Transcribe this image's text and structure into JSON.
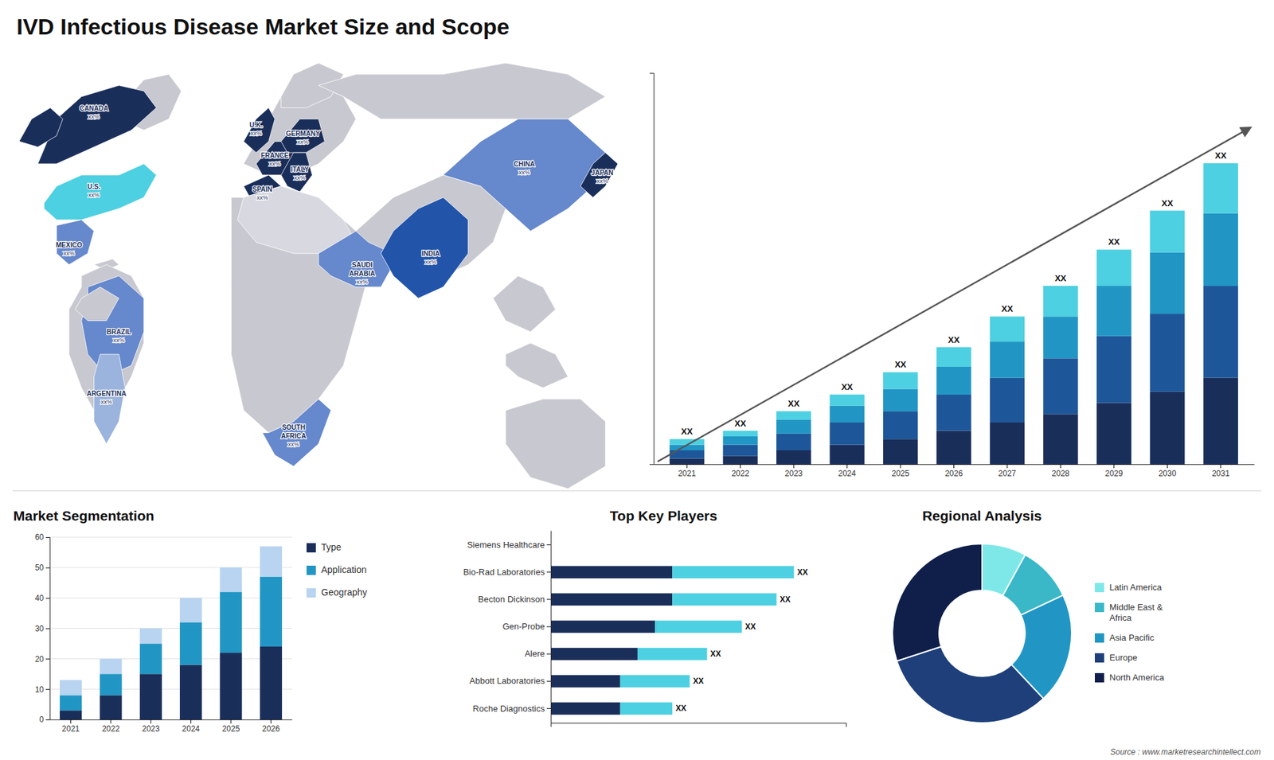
{
  "chart_data": [
    {
      "type": "bar",
      "title": "IVD Infectious Disease Market Size and Scope",
      "stacked": true,
      "categories": [
        "2021",
        "2022",
        "2023",
        "2024",
        "2025",
        "2026",
        "2027",
        "2028",
        "2029",
        "2030",
        "2031"
      ],
      "series": [
        {
          "color": "#1a2e5a",
          "values": [
            2,
            3,
            5,
            7,
            9,
            12,
            15,
            18,
            22,
            26,
            31
          ]
        },
        {
          "color": "#1e5799",
          "values": [
            3,
            4,
            6,
            8,
            10,
            13,
            16,
            20,
            24,
            28,
            33
          ]
        },
        {
          "color": "#2196c4",
          "values": [
            2,
            3,
            5,
            6,
            8,
            10,
            13,
            15,
            18,
            22,
            26
          ]
        },
        {
          "color": "#4dd0e1",
          "values": [
            2,
            2,
            3,
            4,
            6,
            7,
            9,
            11,
            13,
            15,
            18
          ]
        }
      ],
      "ylim": [
        0,
        140.4
      ],
      "tick_labels": "x",
      "grid": false,
      "annotations": [
        "XX",
        "XX",
        "XX",
        "XX",
        "XX",
        "XX",
        "XX",
        "XX",
        "XX",
        "XX",
        "XX"
      ]
    },
    {
      "type": "map",
      "categories": [
        "CANADA",
        "U.S.",
        "MEXICO",
        "BRAZIL",
        "ARGENTINA",
        "U.K.",
        "FRANCE",
        "SPAIN",
        "GERMANY",
        "ITALY",
        "SAUDI\nARABIA",
        "SOUTH\nAFRICA",
        "CHINA",
        "JAPAN",
        "INDIA"
      ],
      "colors": [
        "#1a2e5a",
        "#4dd0e1",
        "#6688cc",
        "#6688cc",
        "#9bb4dd",
        "#1a2e5a",
        "#1a2e5a",
        "#1a2e5a",
        "#1a2e5a",
        "#1a2e5a",
        "#6688cc",
        "#6688cc",
        "#6688cc",
        "#1a2e5a",
        "#2255aa"
      ],
      "annotations": [
        "xx%",
        "xx%",
        "xx%",
        "xx%",
        "xx%",
        "xx%",
        "xx%",
        "xx%",
        "xx%",
        "xx%",
        "xx%",
        "xx%",
        "xx%",
        "xx%",
        "xx%"
      ]
    },
    {
      "type": "bar",
      "title": "Market Segmentation",
      "stacked": true,
      "categories": [
        "2021",
        "2022",
        "2023",
        "2024",
        "2025",
        "2026"
      ],
      "series": [
        {
          "name": "Type",
          "color": "#1a2e5a",
          "values": [
            3,
            8,
            15,
            18,
            22,
            24
          ]
        },
        {
          "name": "Application",
          "color": "#2196c4",
          "values": [
            5,
            7,
            10,
            14,
            20,
            23
          ]
        },
        {
          "name": "Geography",
          "color": "#b8d4f0",
          "values": [
            5,
            5,
            5,
            8,
            8,
            10
          ]
        }
      ],
      "ylim": [
        0,
        60
      ],
      "yticks": [
        0,
        10,
        20,
        30,
        40,
        50,
        60
      ],
      "grid": true,
      "legend": "right"
    },
    {
      "type": "bar",
      "title": "Top Key Players",
      "orientation": "horizontal",
      "stacked": true,
      "categories": [
        "Roche Diagnostics",
        "Abbott Laboratories",
        "Alere",
        "Gen-Probe",
        "Becton Dickinson",
        "Bio-Rad Laboratories",
        "Siemens Healthcare"
      ],
      "series": [
        {
          "color": "#1a2e5a",
          "values": [
            4,
            4,
            5,
            6,
            7,
            7,
            0
          ]
        },
        {
          "color": "#4dd0e1",
          "values": [
            3,
            4,
            4,
            5,
            6,
            7,
            0
          ]
        }
      ],
      "xlim": [
        0,
        17
      ],
      "tick_labels": "y",
      "grid": false,
      "annotations": [
        "XX",
        "XX",
        "XX",
        "XX",
        "XX",
        "XX"
      ]
    },
    {
      "type": "donut",
      "title": "Regional Analysis",
      "categories": [
        "Latin America",
        "Middle East &\nAfrica",
        "Asia Pacific",
        "Europe",
        "North America"
      ],
      "values": [
        8,
        10,
        20,
        32,
        30
      ],
      "colors": [
        "#7ee8e8",
        "#3ab8c8",
        "#2196c4",
        "#1e3f7a",
        "#0f1f4a"
      ],
      "legend": "right",
      "annotations": [
        "Source : www.marketresearchintellect.com"
      ]
    }
  ]
}
